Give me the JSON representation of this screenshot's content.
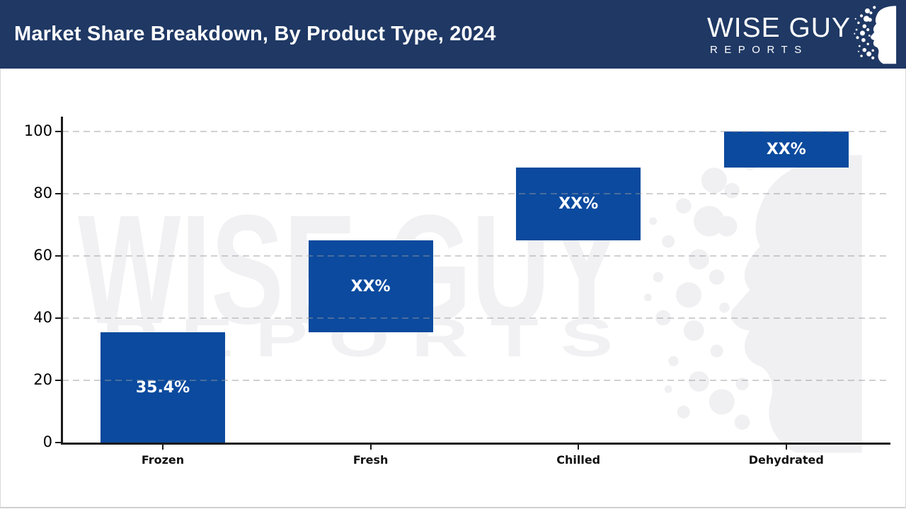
{
  "header": {
    "title": "Market Share Breakdown, By Product Type, 2024",
    "bg_color": "#1f3864",
    "logo": {
      "line1": "WISE GUY",
      "line2": "REPORTS"
    }
  },
  "watermark": {
    "line1": "WISE GUY",
    "line2": "R E P O R T S"
  },
  "chart_data": {
    "type": "bar",
    "subtype": "floating-waterfall",
    "categories": [
      "Frozen",
      "Fresh",
      "Chilled",
      "Dehydrated"
    ],
    "segments": [
      {
        "category": "Frozen",
        "start": 0,
        "end": 35.4,
        "label": "35.4%"
      },
      {
        "category": "Fresh",
        "start": 35.4,
        "end": 65,
        "label": "XX%"
      },
      {
        "category": "Chilled",
        "start": 65,
        "end": 88.5,
        "label": "XX%"
      },
      {
        "category": "Dehydrated",
        "start": 88.5,
        "end": 100,
        "label": "XX%"
      }
    ],
    "y_ticks": [
      0,
      20,
      40,
      60,
      80,
      100
    ],
    "ylim": [
      0,
      104
    ],
    "bar_color": "#0b4a9e",
    "grid": "horizontal dashed, drawn above bars",
    "legend": "none",
    "title": "",
    "xlabel": "",
    "ylabel": ""
  }
}
